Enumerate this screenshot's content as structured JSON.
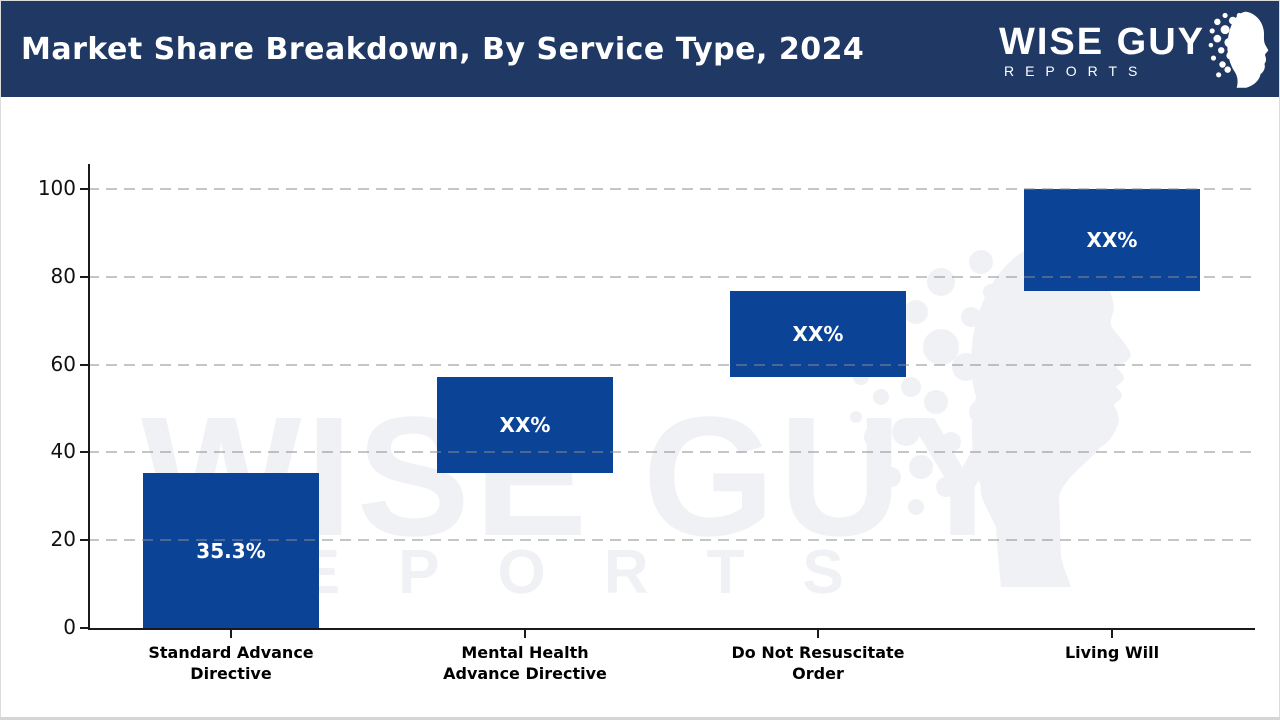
{
  "header": {
    "title": "Market Share Breakdown, By Service Type, 2024",
    "logo": {
      "line1": "WISE GUY",
      "line2": "REPORTS"
    }
  },
  "watermark": {
    "line1": "WISE GUY",
    "line2": "REPORTS"
  },
  "colors": {
    "header_bg": "#1f3864",
    "bar": "#0b4397",
    "axis": "#1a1a1a",
    "grid": "#d4d4d4",
    "watermark": "#f0f1f4",
    "bar_label": "#ffffff",
    "title_text": "#ffffff"
  },
  "chart_data": {
    "type": "bar",
    "subtype": "waterfall",
    "title": "Market Share Breakdown, By Service Type, 2024",
    "categories": [
      "Standard Advance Directive",
      "Mental Health Advance Directive",
      "Do Not Resuscitate Order",
      "Living Will"
    ],
    "category_label_lines": [
      [
        "Standard Advance",
        "Directive"
      ],
      [
        "Mental Health",
        "Advance Directive"
      ],
      [
        "Do Not Resuscitate",
        "Order"
      ],
      [
        "Living Will"
      ]
    ],
    "segments": [
      {
        "start": 0,
        "end": 35.3,
        "label": "35.3%"
      },
      {
        "start": 35.3,
        "end": 57.2,
        "label": "XX%"
      },
      {
        "start": 57.2,
        "end": 76.8,
        "label": "XX%"
      },
      {
        "start": 76.8,
        "end": 100,
        "label": "XX%"
      }
    ],
    "yticks": [
      0,
      20,
      40,
      60,
      80,
      100
    ],
    "ylim": [
      0,
      105
    ],
    "xlabel": "",
    "ylabel": "",
    "grid": "horizontal-dashed",
    "legend": "none"
  }
}
